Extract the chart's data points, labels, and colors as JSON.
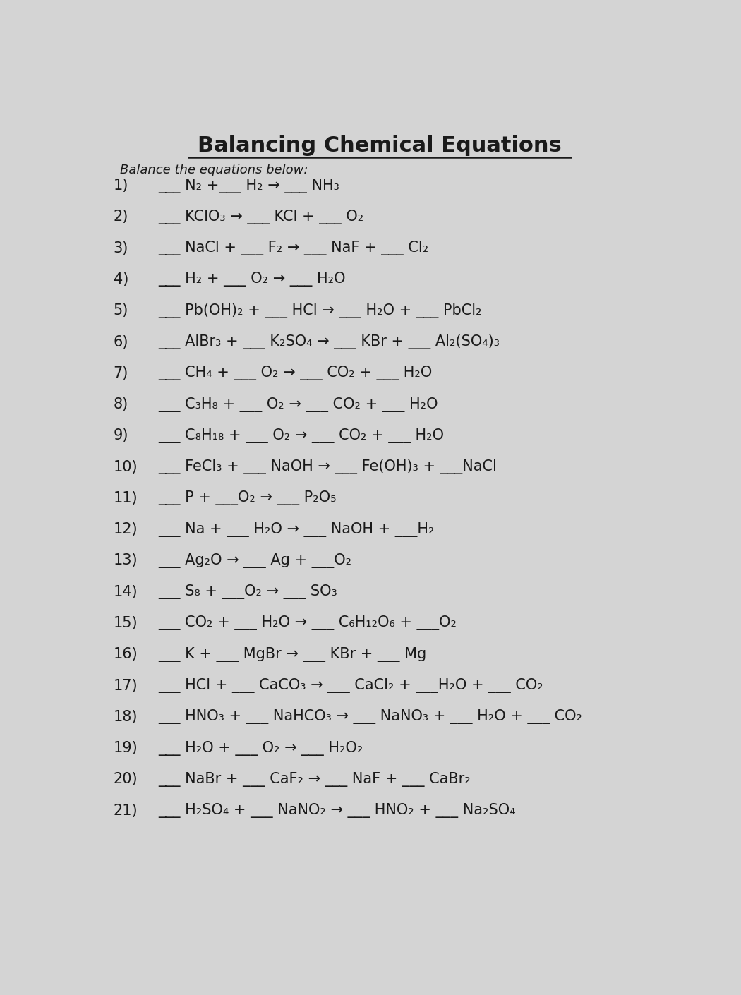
{
  "title": "Balancing Chemical Equations",
  "subtitle": "Balance the equations below:",
  "background_color": "#d4d4d4",
  "text_color": "#1a1a1a",
  "main_fontsize": 15,
  "title_fontsize": 22,
  "subtitle_fontsize": 13,
  "equations": [
    [
      "1)",
      "___ N₂ +___ H₂ → ___ NH₃"
    ],
    [
      "2)",
      "___ KClO₃ → ___ KCl + ___ O₂"
    ],
    [
      "3)",
      "___ NaCl + ___ F₂ → ___ NaF + ___ Cl₂"
    ],
    [
      "4)",
      "___ H₂ + ___ O₂ → ___ H₂O"
    ],
    [
      "5)",
      "___ Pb(OH)₂ + ___ HCl → ___ H₂O + ___ PbCl₂"
    ],
    [
      "6)",
      "___ AlBr₃ + ___ K₂SO₄ → ___ KBr + ___ Al₂(SO₄)₃"
    ],
    [
      "7)",
      "___ CH₄ + ___ O₂ → ___ CO₂ + ___ H₂O"
    ],
    [
      "8)",
      "___ C₃H₈ + ___ O₂ → ___ CO₂ + ___ H₂O"
    ],
    [
      "9)",
      "___ C₈H₁₈ + ___ O₂ → ___ CO₂ + ___ H₂O"
    ],
    [
      "10)",
      "___ FeCl₃ + ___ NaOH → ___ Fe(OH)₃ + ___NaCl"
    ],
    [
      "11)",
      "___ P + ___O₂ → ___ P₂O₅"
    ],
    [
      "12)",
      "___ Na + ___ H₂O → ___ NaOH + ___H₂"
    ],
    [
      "13)",
      "___ Ag₂O → ___ Ag + ___O₂"
    ],
    [
      "14)",
      "___ S₈ + ___O₂ → ___ SO₃"
    ],
    [
      "15)",
      "___ CO₂ + ___ H₂O → ___ C₆H₁₂O₆ + ___O₂"
    ],
    [
      "16)",
      "___ K + ___ MgBr → ___ KBr + ___ Mg"
    ],
    [
      "17)",
      "___ HCl + ___ CaCO₃ → ___ CaCl₂ + ___H₂O + ___ CO₂"
    ],
    [
      "18)",
      "___ HNO₃ + ___ NaHCO₃ → ___ NaNO₃ + ___ H₂O + ___ CO₂"
    ],
    [
      "19)",
      "___ H₂O + ___ O₂ → ___ H₂O₂"
    ],
    [
      "20)",
      "___ NaBr + ___ CaF₂ → ___ NaF + ___ CaBr₂"
    ],
    [
      "21)",
      "___ H₂SO₄ + ___ NaNO₂ → ___ HNO₂ + ___ Na₂SO₄"
    ]
  ]
}
